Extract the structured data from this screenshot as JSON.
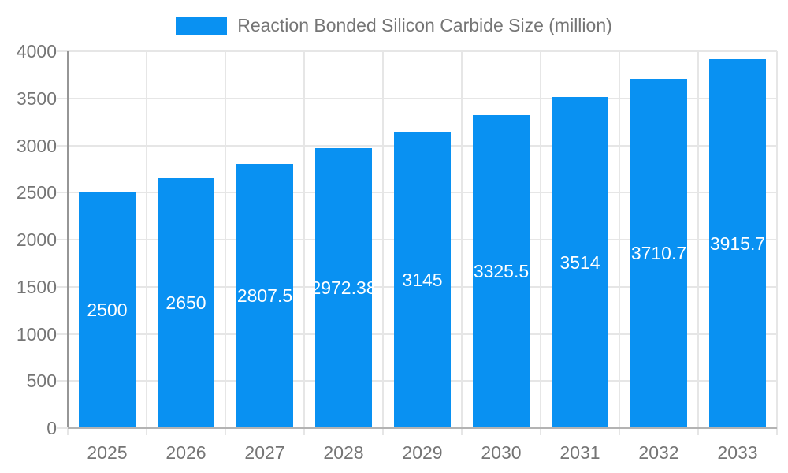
{
  "chart_data": {
    "type": "bar",
    "title": "Reaction Bonded Silicon Carbide Size (million)",
    "legend": {
      "label": "Reaction Bonded Silicon Carbide Size (million)",
      "position": "top"
    },
    "categories": [
      "2025",
      "2026",
      "2027",
      "2028",
      "2029",
      "2030",
      "2031",
      "2032",
      "2033"
    ],
    "series": [
      {
        "name": "Reaction Bonded Silicon Carbide Size (million)",
        "values": [
          2500,
          2650,
          2807.5,
          2972.38,
          3145,
          3325.5,
          3514,
          3710.7,
          3915.7
        ]
      }
    ],
    "bar_labels": [
      "2500",
      "2650",
      "2807.5",
      "2972.38",
      "3145",
      "3325.5",
      "3514",
      "3710.7",
      "3915.7"
    ],
    "xlabel": "",
    "ylabel": "",
    "ylim": [
      0,
      4000
    ],
    "y_ticks": [
      0,
      500,
      1000,
      1500,
      2000,
      2500,
      3000,
      3500,
      4000
    ],
    "grid": true,
    "colors": {
      "bar": "#0991f2",
      "axis_text": "#757575",
      "legend_text": "#757575",
      "grid_line": "#e6e6e6",
      "baseline": "#b3b3b3",
      "y_axis_line": "#969696",
      "bar_label_text": "#ffffff",
      "background": "#ffffff"
    }
  }
}
